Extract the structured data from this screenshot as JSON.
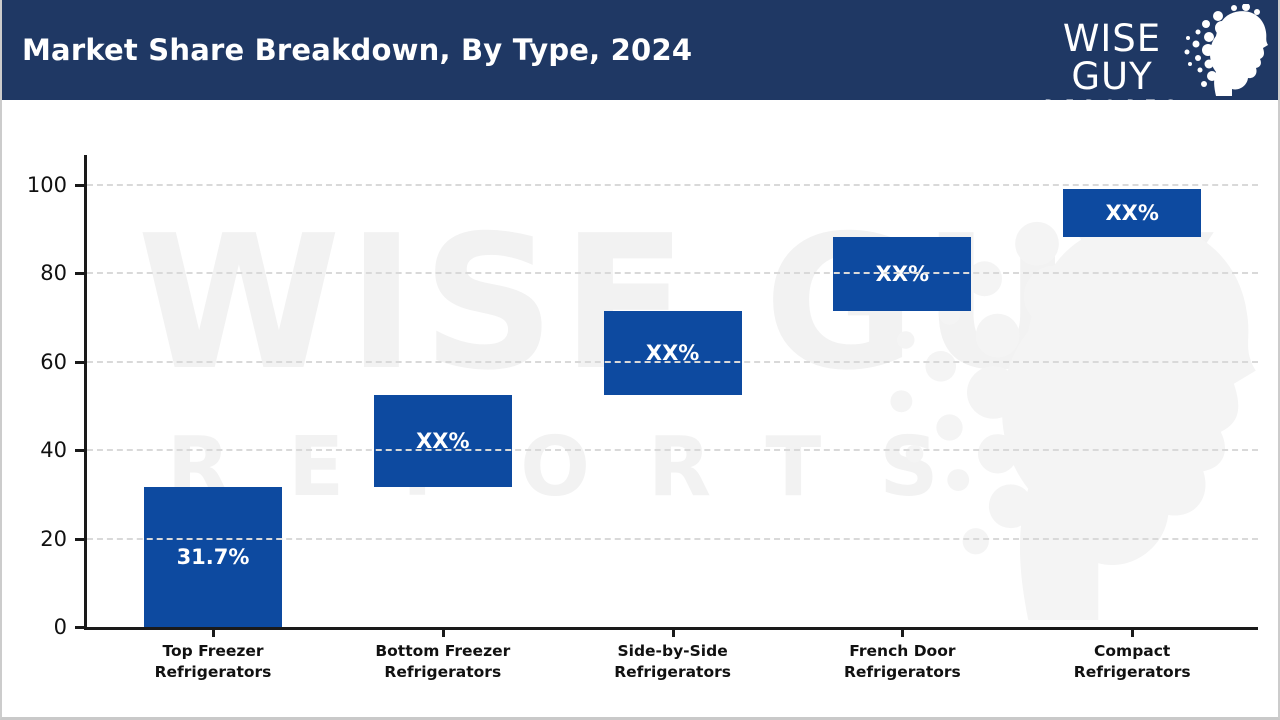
{
  "header": {
    "title": "Market Share Breakdown, By Type, 2024",
    "bg_color": "#1F3864",
    "logo": {
      "line1": "WISE GUY",
      "line2": "REPORTS"
    }
  },
  "watermark": {
    "line1": "WISE GUY",
    "line2": "REPORTS"
  },
  "chart_data": {
    "type": "bar",
    "variant": "waterfall",
    "title": "Market Share Breakdown, By Type, 2024",
    "xlabel": "",
    "ylabel": "",
    "categories": [
      "Top Freezer\nRefrigerators",
      "Bottom Freezer\nRefrigerators",
      "Side-by-Side\nRefrigerators",
      "French Door\nRefrigerators",
      "Compact\nRefrigerators"
    ],
    "bars": [
      {
        "start": 0,
        "end": 31.7,
        "label": "31.7%"
      },
      {
        "start": 31.7,
        "end": 52.4,
        "label": "XX%"
      },
      {
        "start": 52.4,
        "end": 71.5,
        "label": "XX%"
      },
      {
        "start": 71.5,
        "end": 88.1,
        "label": "XX%"
      },
      {
        "start": 88.1,
        "end": 99.0,
        "label": "XX%"
      }
    ],
    "ylim": [
      0,
      106
    ],
    "yticks": [
      0,
      20,
      40,
      60,
      80,
      100
    ],
    "grid": "horizontal-dashed",
    "legend": "none",
    "colors": {
      "bar": "#0D4AA0",
      "bar_label": "#FFFFFF",
      "grid": "#D9D9D9",
      "axis": "#1A1A1A",
      "tick_label": "#111111",
      "header_bg": "#1F3864",
      "watermark": "#F2F2F2"
    }
  }
}
